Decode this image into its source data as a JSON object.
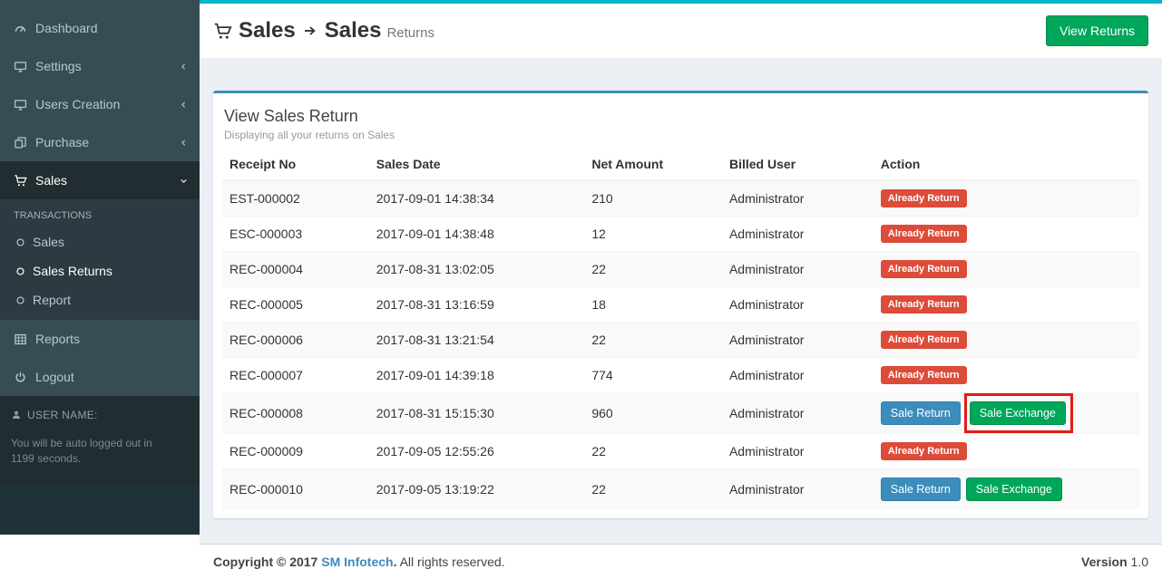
{
  "colors": {
    "accent_teal": "#00b4cc",
    "primary_blue": "#3c8dbc",
    "success_green": "#00a65a",
    "danger_red": "#dd4b39",
    "highlight_red": "#e41b17"
  },
  "sidebar": {
    "items": [
      {
        "label": "Dashboard"
      },
      {
        "label": "Settings"
      },
      {
        "label": "Users Creation"
      },
      {
        "label": "Purchase"
      },
      {
        "label": "Sales"
      }
    ],
    "section_label": "TRANSACTIONS",
    "sub_items": [
      {
        "label": "Sales"
      },
      {
        "label": "Sales Returns"
      },
      {
        "label": "Report"
      }
    ],
    "bottom_items": [
      {
        "label": "Reports"
      },
      {
        "label": "Logout"
      }
    ],
    "user_label": "USER NAME:",
    "auto_logout_line1": "You will be auto logged out in",
    "auto_logout_line2": "1199 seconds."
  },
  "header": {
    "section": "Sales",
    "page": "Sales",
    "page_sub": "Returns",
    "action_button": "View Returns"
  },
  "card": {
    "title": "View Sales Return",
    "subtitle": "Displaying all your returns on Sales",
    "columns": [
      "Receipt No",
      "Sales Date",
      "Net Amount",
      "Billed User",
      "Action"
    ],
    "rows": [
      {
        "receipt": "EST-000002",
        "date": "2017-09-01 14:38:34",
        "amount": "210",
        "user": "Administrator",
        "actions": [
          {
            "label": "Already Return",
            "style": "danger",
            "name": "already-return-badge"
          }
        ]
      },
      {
        "receipt": "ESC-000003",
        "date": "2017-09-01 14:38:48",
        "amount": "12",
        "user": "Administrator",
        "actions": [
          {
            "label": "Already Return",
            "style": "danger",
            "name": "already-return-badge"
          }
        ]
      },
      {
        "receipt": "REC-000004",
        "date": "2017-08-31 13:02:05",
        "amount": "22",
        "user": "Administrator",
        "actions": [
          {
            "label": "Already Return",
            "style": "danger",
            "name": "already-return-badge"
          }
        ]
      },
      {
        "receipt": "REC-000005",
        "date": "2017-08-31 13:16:59",
        "amount": "18",
        "user": "Administrator",
        "actions": [
          {
            "label": "Already Return",
            "style": "danger",
            "name": "already-return-badge"
          }
        ]
      },
      {
        "receipt": "REC-000006",
        "date": "2017-08-31 13:21:54",
        "amount": "22",
        "user": "Administrator",
        "actions": [
          {
            "label": "Already Return",
            "style": "danger",
            "name": "already-return-badge"
          }
        ]
      },
      {
        "receipt": "REC-000007",
        "date": "2017-09-01 14:39:18",
        "amount": "774",
        "user": "Administrator",
        "actions": [
          {
            "label": "Already Return",
            "style": "danger",
            "name": "already-return-badge"
          }
        ]
      },
      {
        "receipt": "REC-000008",
        "date": "2017-08-31 15:15:30",
        "amount": "960",
        "user": "Administrator",
        "actions": [
          {
            "label": "Sale Return",
            "style": "primary",
            "name": "sale-return-button"
          },
          {
            "label": "Sale Exchange",
            "style": "success",
            "name": "sale-exchange-button",
            "highlighted": true
          }
        ]
      },
      {
        "receipt": "REC-000009",
        "date": "2017-09-05 12:55:26",
        "amount": "22",
        "user": "Administrator",
        "actions": [
          {
            "label": "Already Return",
            "style": "danger",
            "name": "already-return-badge"
          }
        ]
      },
      {
        "receipt": "REC-000010",
        "date": "2017-09-05 13:19:22",
        "amount": "22",
        "user": "Administrator",
        "actions": [
          {
            "label": "Sale Return",
            "style": "primary",
            "name": "sale-return-button"
          },
          {
            "label": "Sale Exchange",
            "style": "success",
            "name": "sale-exchange-button"
          }
        ]
      }
    ]
  },
  "footer": {
    "copyright_prefix": "Copyright © 2017",
    "company": "SM Infotech",
    "dot": ".",
    "rights": "All rights reserved.",
    "version_label": "Version",
    "version_value": "1.0"
  }
}
